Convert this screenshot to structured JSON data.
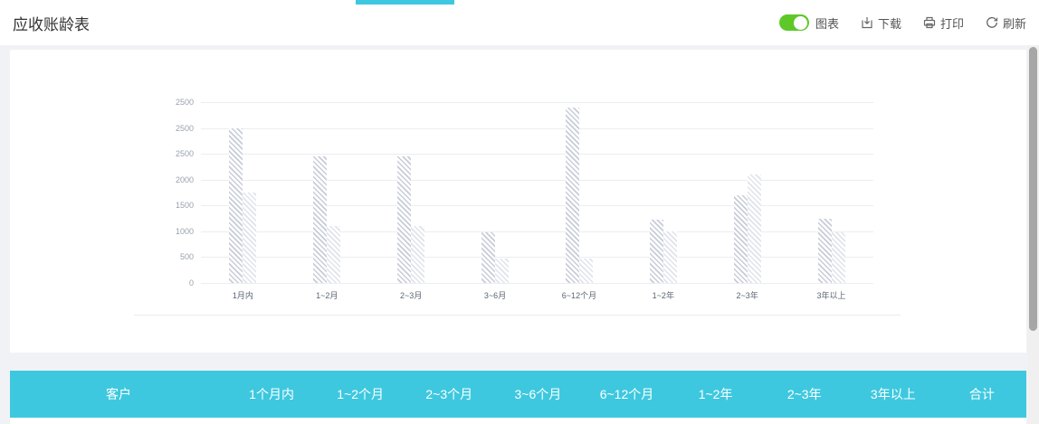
{
  "page": {
    "title": "应收账龄表",
    "accent_color": "#3ec8df"
  },
  "toolbar": {
    "chart_toggle_label": "图表",
    "chart_toggle_state": "on",
    "toggle_on_color": "#5ec829",
    "download_label": "下载",
    "print_label": "打印",
    "refresh_label": "刷新"
  },
  "chart_data": {
    "type": "bar",
    "title": "",
    "xlabel": "",
    "ylabel": "",
    "categories": [
      "1月内",
      "1~2月",
      "2~3月",
      "3~6月",
      "6~12个月",
      "1~2年",
      "2~3年",
      "3年以上"
    ],
    "series": [
      {
        "name": "",
        "hatch_color": "#c7ccd8",
        "values": [
          3000,
          2450,
          2450,
          975,
          3400,
          1225,
          1700,
          1250
        ]
      },
      {
        "name": "",
        "hatch_color": "#e0e3eb",
        "values": [
          1750,
          1100,
          1100,
          480,
          480,
          1000,
          2100,
          975
        ]
      }
    ],
    "ylim": [
      0,
      3500
    ],
    "ytick_labels_top_to_bottom": [
      "2500",
      "2500",
      "2500",
      "2000",
      "1500",
      "1000",
      "500",
      "0"
    ],
    "grid": true,
    "legend": "none",
    "bar_style": "diagonal-hatch"
  },
  "table": {
    "header_bg": "#3ec8df",
    "columns": [
      "客户",
      "1个月内",
      "1~2个月",
      "2~3个月",
      "3~6个月",
      "6~12个月",
      "1~2年",
      "2~3年",
      "3年以上",
      "合计"
    ]
  }
}
